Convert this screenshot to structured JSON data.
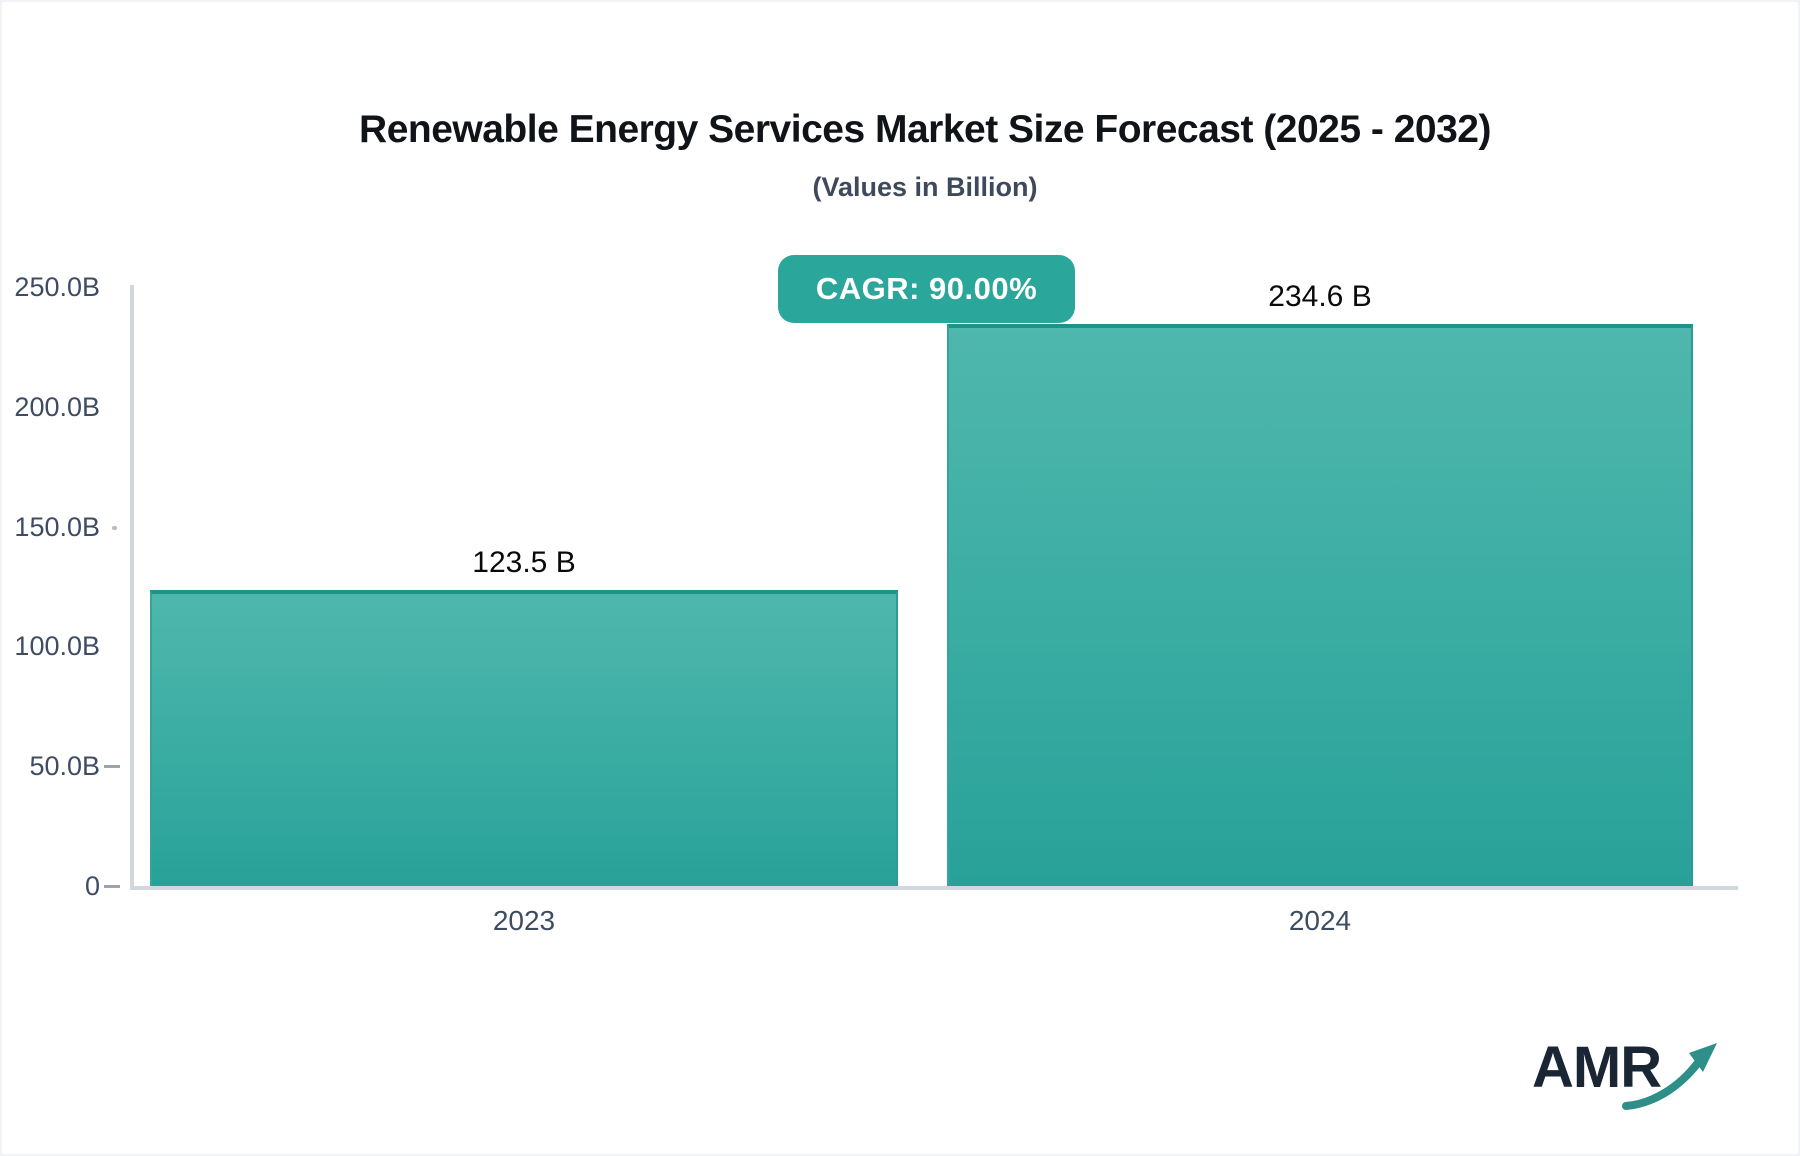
{
  "header": {
    "title": "Renewable Energy Services Market Size Forecast (2025 - 2032)",
    "subtitle": "(Values in Billion)"
  },
  "cagr_badge": {
    "label": "CAGR: 90.00%",
    "bg_color": "#2ba69b",
    "text_color": "#ffffff"
  },
  "chart_data": {
    "type": "bar",
    "title": "Renewable Energy Services Market Size Forecast (2025 - 2032)",
    "subtitle": "(Values in Billion)",
    "categories": [
      "2023",
      "2024"
    ],
    "values": [
      123.5,
      234.6
    ],
    "value_labels": [
      "123.5 B",
      "234.6 B"
    ],
    "cagr_percent": "90.00%",
    "ylim": [
      0,
      250
    ],
    "yticks": [
      "250.0B",
      "200.0B",
      "150.0B",
      "100.0B",
      "50.0B",
      "0"
    ],
    "grid": "off",
    "legend": "none",
    "bar_gradient_top": "#4fb7ad",
    "bar_gradient_bottom": "#28a199",
    "bar_border_color": "#1e938a",
    "axis_color": "#d2d6dd",
    "tick_label_color": "#3f4d62"
  },
  "logo": {
    "text": "AMR",
    "text_color": "#1b2634",
    "arrow_color": "#2e8e88"
  }
}
